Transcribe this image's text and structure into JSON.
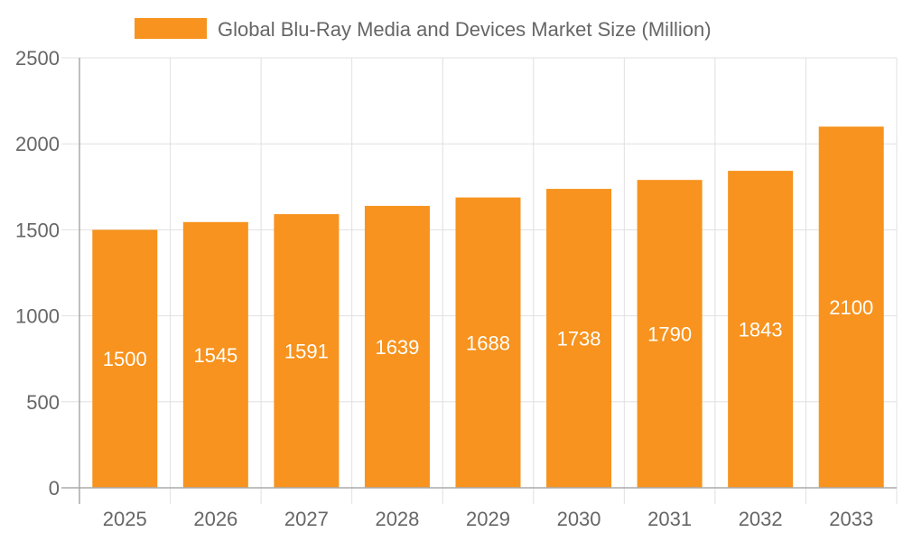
{
  "chart_data": {
    "type": "bar",
    "categories": [
      "2025",
      "2026",
      "2027",
      "2028",
      "2029",
      "2030",
      "2031",
      "2032",
      "2033"
    ],
    "series": [
      {
        "name": "Global Blu-Ray Media and Devices Market Size (Million)",
        "values": [
          1500,
          1545,
          1591,
          1639,
          1688,
          1738,
          1790,
          1843,
          2100
        ]
      }
    ],
    "ylim": [
      0,
      2500
    ],
    "yticks": [
      0,
      500,
      1000,
      1500,
      2000,
      2500
    ],
    "grid": true,
    "legend_position": "top",
    "data_labels": true,
    "colors": {
      "bar": "#F7931E",
      "grid": "#e0e0e0",
      "axis": "#aaaaaa",
      "text": "#666666",
      "label": "#ffffff"
    }
  }
}
